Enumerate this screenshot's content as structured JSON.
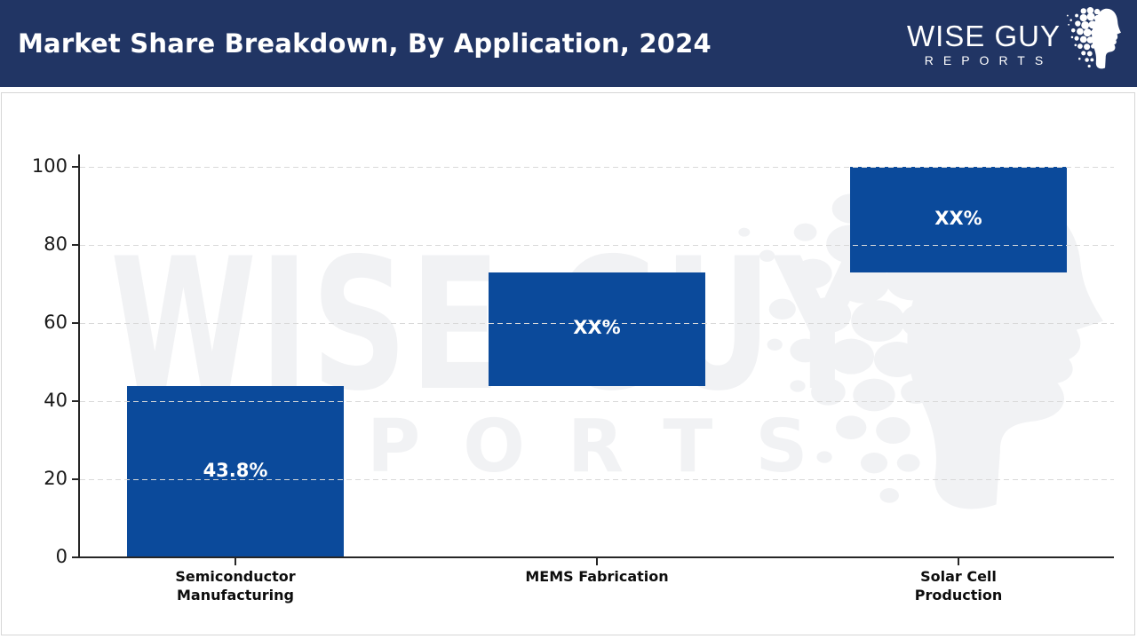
{
  "header": {
    "title": "Market Share Breakdown, By Application, 2024",
    "bg_color": "#213564",
    "logo": {
      "line1": "WISE GUY",
      "line2": "REPORTS",
      "icon": "wise-guy-head-icon"
    }
  },
  "watermark": {
    "line1": "WISE GUY",
    "line2": "REPORTS",
    "icon": "wise-guy-head-watermark-icon"
  },
  "chart_data": {
    "type": "bar",
    "subtype": "waterfall",
    "title": "Market Share Breakdown, By Application, 2024",
    "categories": [
      "Semiconductor Manufacturing",
      "MEMS Fabrication",
      "Solar Cell Production"
    ],
    "category_lines": [
      [
        "Semiconductor",
        "Manufacturing"
      ],
      [
        "MEMS Fabrication"
      ],
      [
        "Solar Cell",
        "Production"
      ]
    ],
    "segments": [
      {
        "category": "Semiconductor Manufacturing",
        "start": 0,
        "end": 43.8,
        "label": "43.8%"
      },
      {
        "category": "MEMS Fabrication",
        "start": 43.8,
        "end": 73,
        "label": "XX%"
      },
      {
        "category": "Solar Cell Production",
        "start": 73,
        "end": 100,
        "label": "XX%"
      }
    ],
    "xlabel": "",
    "ylabel": "",
    "ylim": [
      0,
      100
    ],
    "yticks": [
      0,
      20,
      40,
      60,
      80,
      100
    ],
    "grid": "horizontal-dashed",
    "legend": "none",
    "bar_color": "#0b4a9b",
    "bar_label_color": "#ffffff",
    "axis_color": "#262626"
  }
}
